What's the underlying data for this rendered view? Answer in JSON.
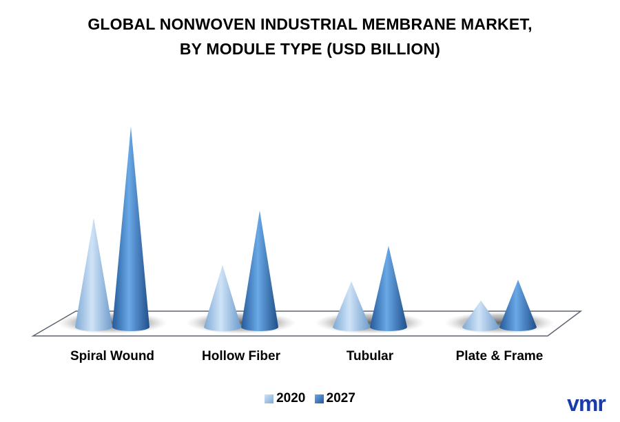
{
  "title_line1": "GLOBAL NONWOVEN INDUSTRIAL MEMBRANE MARKET,",
  "title_line2": "BY MODULE TYPE (USD BILLION)",
  "logo_text": "vmr",
  "colors": {
    "series_2020": "#9cc3e8",
    "series_2027": "#3a7cc4",
    "logo": "#1a3ba8",
    "floor_edge": "#5a6470"
  },
  "chart_data": {
    "type": "bar",
    "style": "3d-cone",
    "categories": [
      "Spiral Wound",
      "Hollow Fiber",
      "Tubular",
      "Plate & Frame"
    ],
    "series": [
      {
        "name": "2020",
        "values": [
          0.74,
          0.42,
          0.31,
          0.18
        ]
      },
      {
        "name": "2027",
        "values": [
          1.36,
          0.79,
          0.55,
          0.32
        ]
      }
    ],
    "ylim": [
      0,
      1.4
    ],
    "grid": false,
    "legend": "bottom",
    "xlabel": "",
    "ylabel": ""
  }
}
